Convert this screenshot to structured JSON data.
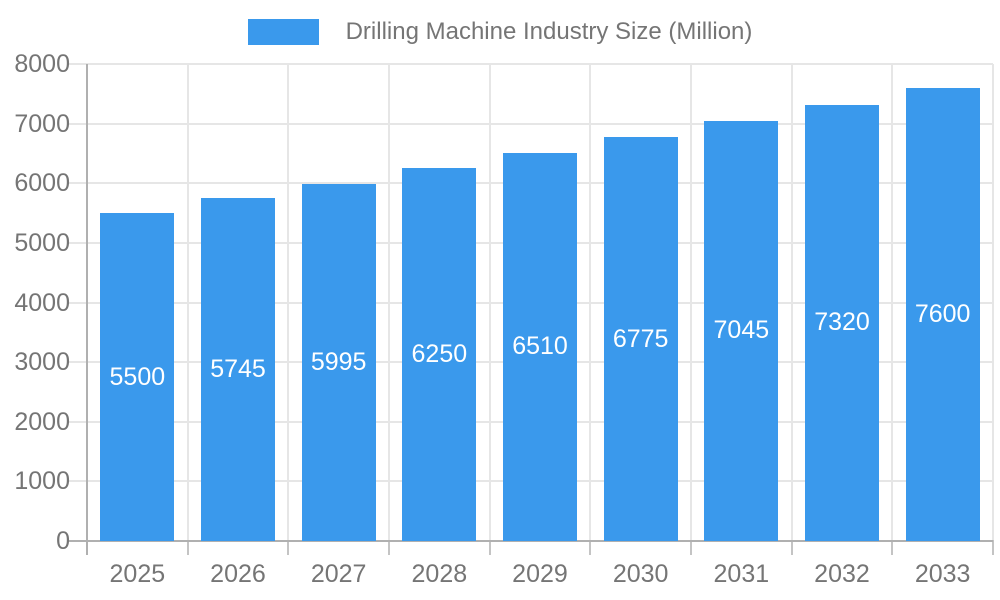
{
  "chart_data": {
    "type": "bar",
    "title": "Drilling Machine Industry Size (Million)",
    "categories": [
      "2025",
      "2026",
      "2027",
      "2028",
      "2029",
      "2030",
      "2031",
      "2032",
      "2033"
    ],
    "series": [
      {
        "name": "Drilling Machine Industry Size (Million)",
        "values": [
          5500,
          5745,
          5995,
          6250,
          6510,
          6775,
          7045,
          7320,
          7600
        ]
      }
    ],
    "data_labels": [
      "5500",
      "5745",
      "5995",
      "6250",
      "6510",
      "6775",
      "7045",
      "7320",
      "7600"
    ],
    "xlabel": "",
    "ylabel": "",
    "ylim": [
      0,
      8000
    ],
    "y_ticks": [
      0,
      1000,
      2000,
      3000,
      4000,
      5000,
      6000,
      7000,
      8000
    ],
    "grid": true,
    "legend_position": "top-center",
    "colors": {
      "bar": "#3a99ec",
      "axis_text": "#757575",
      "value_label": "#ffffff",
      "gridline": "#e6e6e6",
      "axis_line": "#b0b0b0"
    }
  }
}
